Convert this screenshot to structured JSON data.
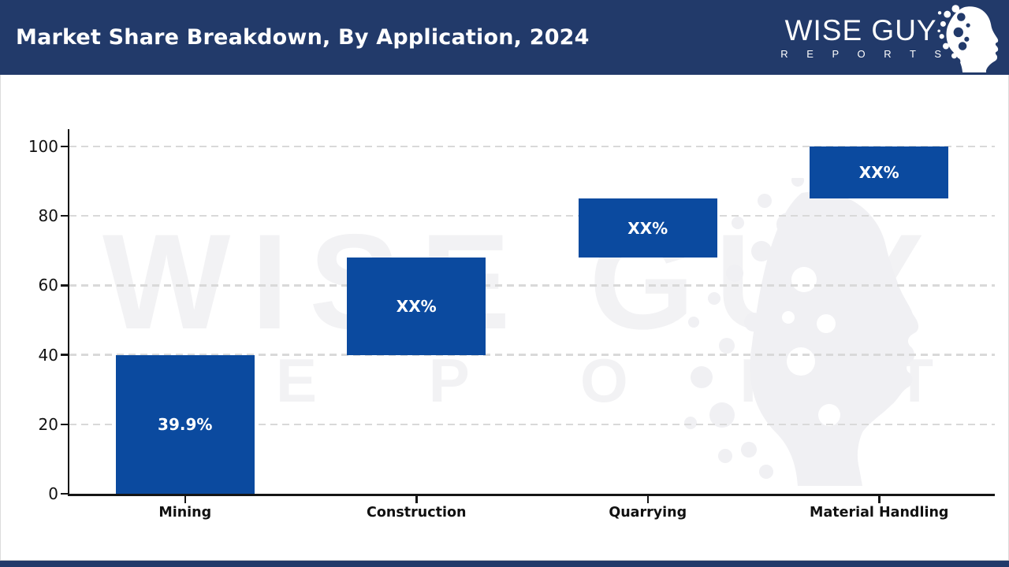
{
  "header": {
    "title": "Market Share Breakdown, By Application, 2024",
    "logo_line1": "WISE GUY",
    "logo_line2": "R E P O R T S"
  },
  "watermark": {
    "line1": "WISE GUY",
    "line2": "R E P O R T S"
  },
  "theme": {
    "header_bg": "#223a6a",
    "footer_bg": "#223a6a",
    "bar_color": "#0b4a9f",
    "gridline_color": "#d9d9d9",
    "watermark_color": "#f2f2f4"
  },
  "chart_data": {
    "type": "bar",
    "subtype": "floating-waterfall",
    "title": "Market Share Breakdown, By Application, 2024",
    "categories": [
      "Mining",
      "Construction",
      "Quarrying",
      "Material Handling"
    ],
    "segments": [
      {
        "category": "Mining",
        "start": 0,
        "end": 39.9,
        "label": "39.9%"
      },
      {
        "category": "Construction",
        "start": 40,
        "end": 68,
        "label": "XX%"
      },
      {
        "category": "Quarrying",
        "start": 68,
        "end": 85,
        "label": "XX%"
      },
      {
        "category": "Material Handling",
        "start": 85,
        "end": 100,
        "label": "XX%"
      }
    ],
    "yticks": [
      0,
      20,
      40,
      60,
      80,
      100
    ],
    "ylim": [
      0,
      105
    ],
    "xlabel": "",
    "ylabel": "",
    "grid": "dashed-horizontal",
    "legend": "none",
    "bar_color": "#0b4a9f"
  }
}
